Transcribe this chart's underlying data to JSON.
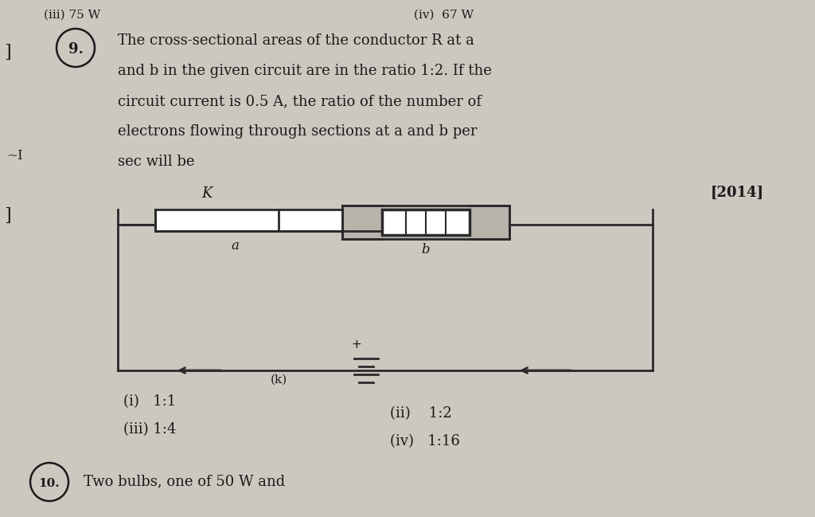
{
  "background_color": "#ccc8c0",
  "text_color": "#1a1a1a",
  "circuit_bg": "#c8c4bc",
  "header_left": "(iii) 75 W",
  "header_right": "(iv)  67 W",
  "question_num": "9.",
  "question_lines": [
    "The cross-sectional areas of the conductor R at a",
    "and b in the given circuit are in the ratio 1:2. If the",
    "circuit current is 0.5 A, the ratio of the number of",
    "electrons flowing through sections at a and b per",
    "sec will be"
  ],
  "year_tag": "[2014]",
  "options_left": [
    "(i)   1:1",
    "(iii) 1:4"
  ],
  "options_right": [
    "(ii)    1:2",
    "(iv)   1:16"
  ],
  "next_num": "10.",
  "next_text": "Two bulbs, one of 50 W and",
  "label_K": "K",
  "label_a": "a",
  "label_b": "b",
  "label_k_bottom": "(k)",
  "margin_labels": [
    "]",
    "~I",
    "]"
  ]
}
